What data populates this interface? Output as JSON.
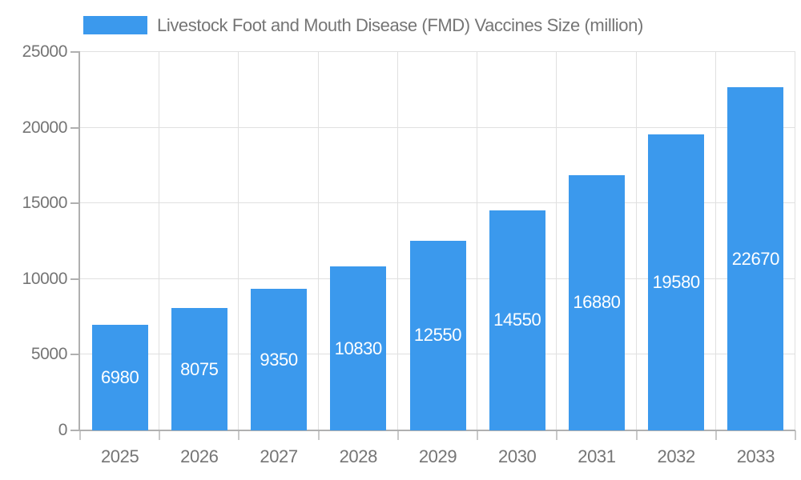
{
  "chart_data": {
    "type": "bar",
    "legend_label": "Livestock Foot and Mouth Disease (FMD) Vaccines Size (million)",
    "categories": [
      "2025",
      "2026",
      "2027",
      "2028",
      "2029",
      "2030",
      "2031",
      "2032",
      "2033"
    ],
    "values": [
      6980,
      8075,
      9350,
      10830,
      12550,
      14550,
      16880,
      19580,
      22670
    ],
    "xlabel": "",
    "ylabel": "",
    "ylim": [
      0,
      25000
    ],
    "y_ticks": [
      0,
      5000,
      10000,
      15000,
      20000,
      25000
    ],
    "grid": true,
    "legend_position": "top-left",
    "colors": {
      "bar": "#3b99ed",
      "value_label": "#ffffff",
      "axis_label": "#757575",
      "grid_line": "#e0e0e0",
      "axis_line": "#b0b0b0",
      "tick_mark": "#c9c9c9",
      "background": "#ffffff"
    }
  }
}
